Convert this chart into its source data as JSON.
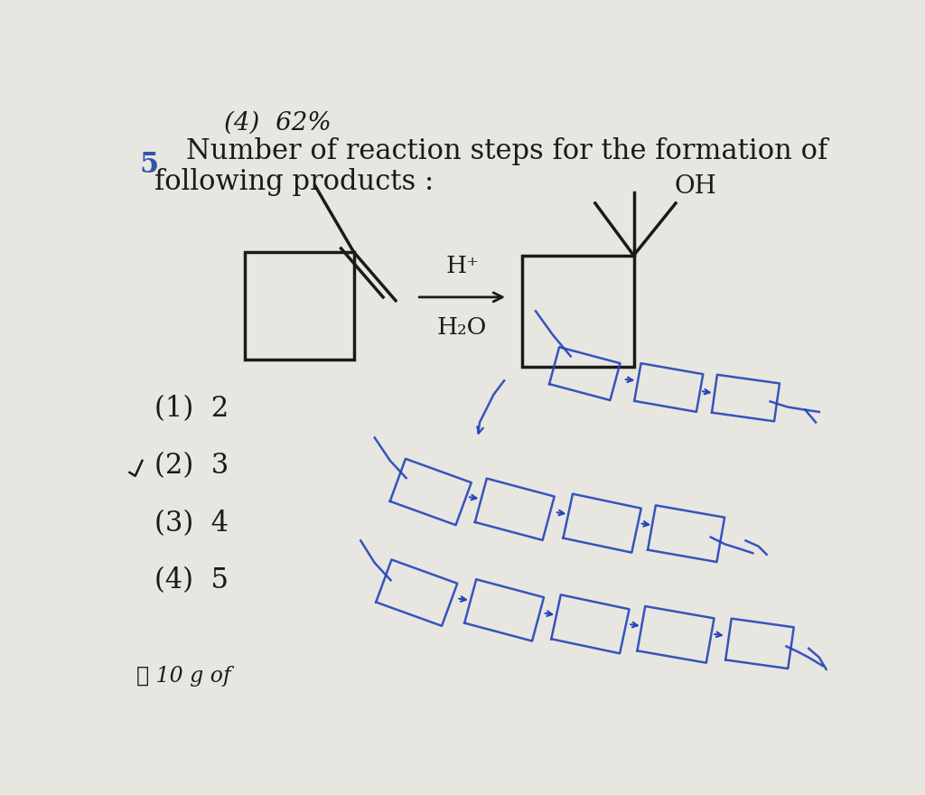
{
  "background_color": "#e8e6e0",
  "title_line1": "Number of reaction steps for the formation of",
  "title_line2": "following products :",
  "header_text": "(4)  62%",
  "options": [
    "(1)  2",
    "(2)  3",
    "(3)  4",
    "(4)  5"
  ],
  "reagent_top": "H⁺",
  "reagent_bottom": "H₂O",
  "footer_text": "ℓ 10 g of",
  "text_color": "#1a1a1a",
  "structure_color": "#1a1a1a",
  "blue_pen": "#2244bb",
  "question_circle_color": "#3355aa"
}
